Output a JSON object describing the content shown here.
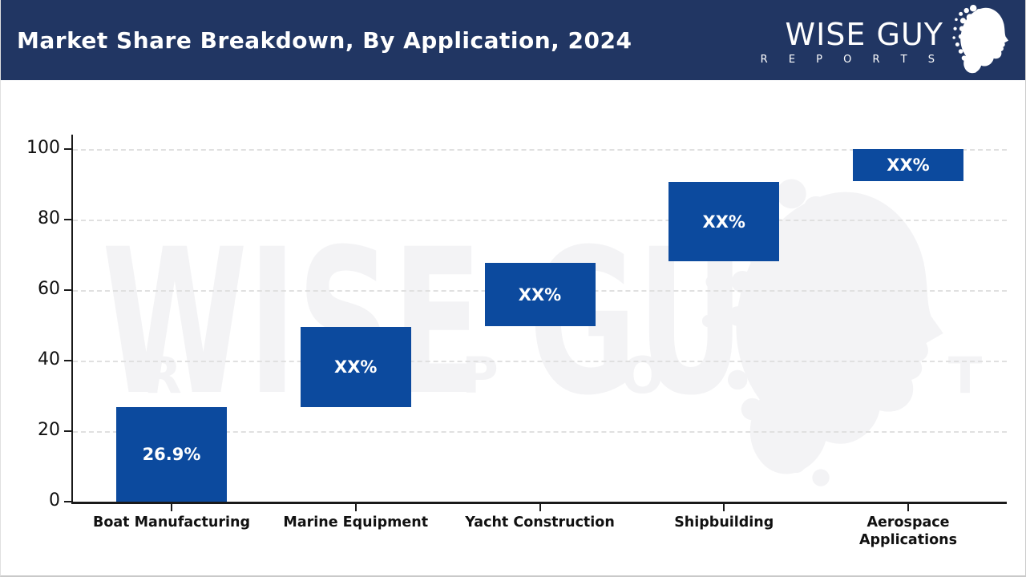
{
  "header": {
    "title": "Market Share Breakdown, By Application, 2024",
    "bg_color": "#213663",
    "logo": {
      "line1": "WISE GUY",
      "line2": "R E P O R T S"
    }
  },
  "watermark": {
    "line1": "WISE GUY",
    "line2": "R E P O R T S"
  },
  "chart_data": {
    "type": "bar",
    "subtype": "floating-segment-waterfall",
    "title": "Market Share Breakdown, By Application, 2024",
    "categories": [
      "Boat Manufacturing",
      "Marine Equipment",
      "Yacht Construction",
      "Shipbuilding",
      "Aerospace Applications"
    ],
    "segments": [
      {
        "category": "Boat Manufacturing",
        "start": 0,
        "end": 26.9,
        "label": "26.9%"
      },
      {
        "category": "Marine Equipment",
        "start": 26.9,
        "end": 49.5,
        "label": "XX%"
      },
      {
        "category": "Yacht Construction",
        "start": 49.7,
        "end": 67.7,
        "label": "XX%"
      },
      {
        "category": "Shipbuilding",
        "start": 68.2,
        "end": 90.6,
        "label": "XX%"
      },
      {
        "category": "Aerospace Applications",
        "start": 90.9,
        "end": 100,
        "label": "XX%"
      }
    ],
    "yticks": [
      0,
      20,
      40,
      60,
      80,
      100
    ],
    "ylim": [
      0,
      104
    ],
    "grid": "horizontal-dashed",
    "legend": "none",
    "bar_color": "#0c4a9e",
    "xlabel": "",
    "ylabel": ""
  }
}
